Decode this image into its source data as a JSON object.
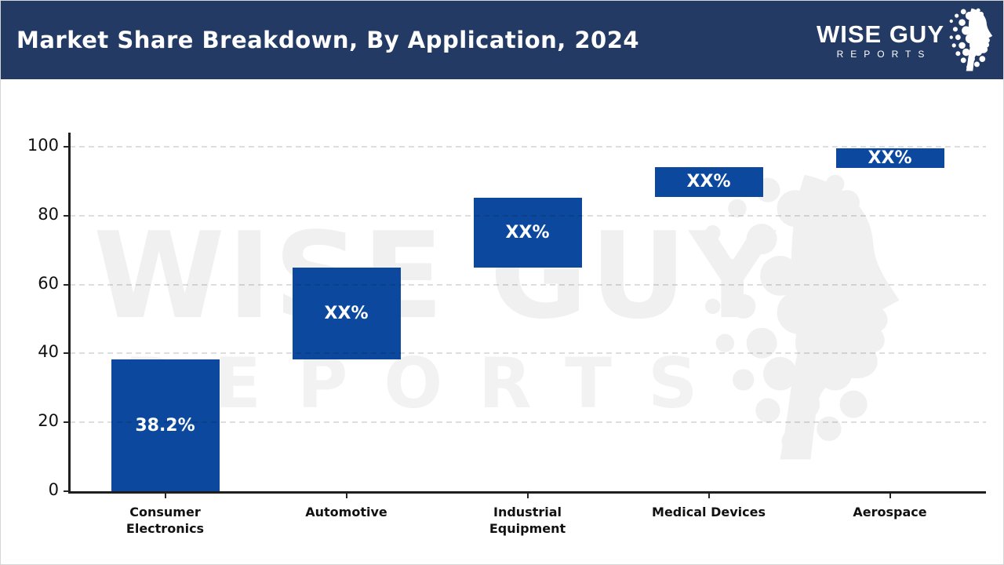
{
  "header": {
    "title": "Market Share Breakdown, By Application, 2024",
    "bg_color": "#233a64",
    "brand": {
      "name": "WISE GUY",
      "tagline": "REPORTS"
    }
  },
  "watermark": {
    "line1": "WISE GUY",
    "line2": "REPORTS"
  },
  "chart_data": {
    "type": "bar",
    "variant": "waterfall",
    "title": "Market Share Breakdown, By Application, 2024",
    "categories": [
      "Consumer\nElectronics",
      "Automotive",
      "Industrial\nEquipment",
      "Medical Devices",
      "Aerospace"
    ],
    "segments": [
      {
        "category": "Consumer Electronics",
        "start": 0,
        "end": 38.2,
        "label": "38.2%"
      },
      {
        "category": "Automotive",
        "start": 38.2,
        "end": 65,
        "label": "XX%"
      },
      {
        "category": "Industrial Equipment",
        "start": 65,
        "end": 85.2,
        "label": "XX%"
      },
      {
        "category": "Medical Devices",
        "start": 85.4,
        "end": 94.1,
        "label": "XX%"
      },
      {
        "category": "Aerospace",
        "start": 93.8,
        "end": 99.5,
        "label": "XX%"
      }
    ],
    "y_ticks": [
      0,
      20,
      40,
      60,
      80,
      100
    ],
    "ylim": [
      0,
      104
    ],
    "xlabel": "",
    "ylabel": "",
    "legend": null,
    "grid": {
      "axis": "y",
      "style": "dashed"
    },
    "colors": {
      "bar": "#0b489e",
      "axis": "#1f1f1f",
      "grid": "rgba(0,0,0,0.13)",
      "value_label": "#ffffff",
      "tick_label": "#111111",
      "watermark": "#f0f0f0"
    }
  }
}
